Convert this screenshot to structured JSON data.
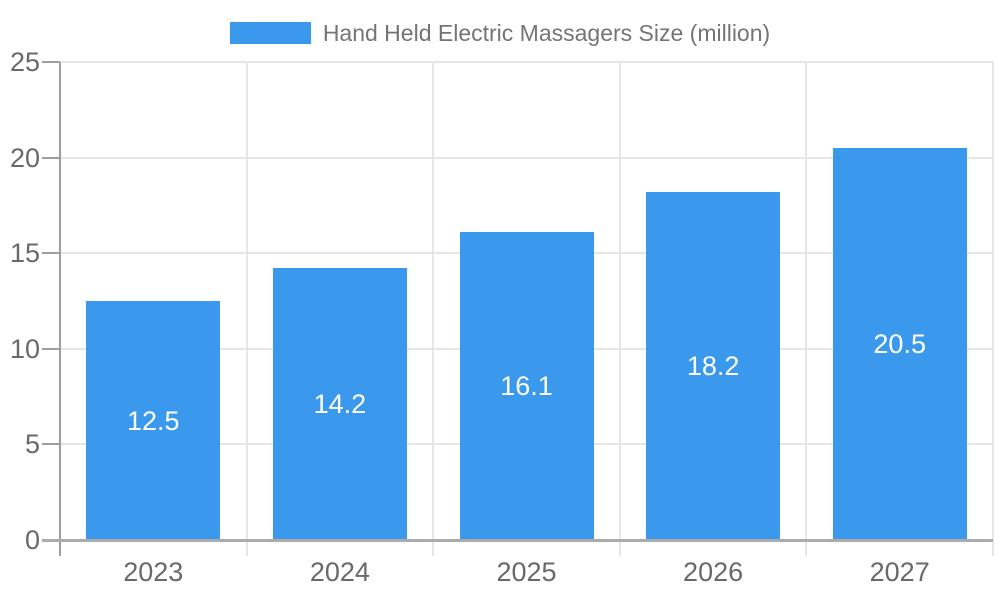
{
  "chart_data": {
    "type": "bar",
    "legend_label": "Hand Held Electric Massagers Size (million)",
    "categories": [
      "2023",
      "2024",
      "2025",
      "2026",
      "2027"
    ],
    "values": [
      12.5,
      14.2,
      16.1,
      18.2,
      20.5
    ],
    "value_labels": [
      "12.5",
      "14.2",
      "16.1",
      "18.2",
      "20.5"
    ],
    "xlabel": "",
    "ylabel": "",
    "ylim": [
      0,
      25
    ],
    "yticks": [
      0,
      5,
      10,
      15,
      20,
      25
    ],
    "grid": true,
    "legend_position": "top-center",
    "colors": {
      "bar": "#3a99ec",
      "value_label": "#ffffff",
      "axis_label": "#696969",
      "legend_text": "#757575",
      "gridline": "#e6e6e6",
      "axis_line": "#9e9e9e",
      "baseline": "#ababab"
    }
  }
}
